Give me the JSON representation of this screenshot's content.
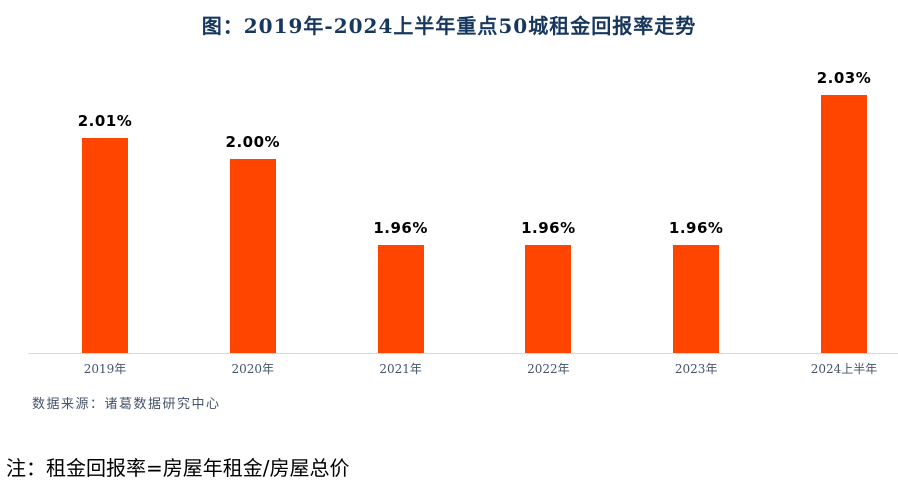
{
  "chart_data": {
    "type": "bar",
    "title": "图：2019年-2024上半年重点50城租金回报率走势",
    "categories": [
      "2019年",
      "2020年",
      "2021年",
      "2022年",
      "2023年",
      "2024上半年"
    ],
    "values": [
      2.01,
      2.0,
      1.96,
      1.96,
      1.96,
      2.03
    ],
    "value_labels": [
      "2.01%",
      "2.00%",
      "1.96%",
      "1.96%",
      "1.96%",
      "2.03%"
    ],
    "xlabel": "",
    "ylabel": "",
    "ylim": [
      1.91,
      2.05
    ],
    "grid": false,
    "legend_position": "none",
    "bar_color": "#FF4500",
    "value_label_color": "#000000",
    "axis_line_color": "#D9D9D9",
    "axis_label_color": "#44546A",
    "title_color": "#17375E"
  },
  "source_note": "数据来源：诸葛数据研究中心",
  "footnote": "注：租金回报率=房屋年租金/房屋总价"
}
